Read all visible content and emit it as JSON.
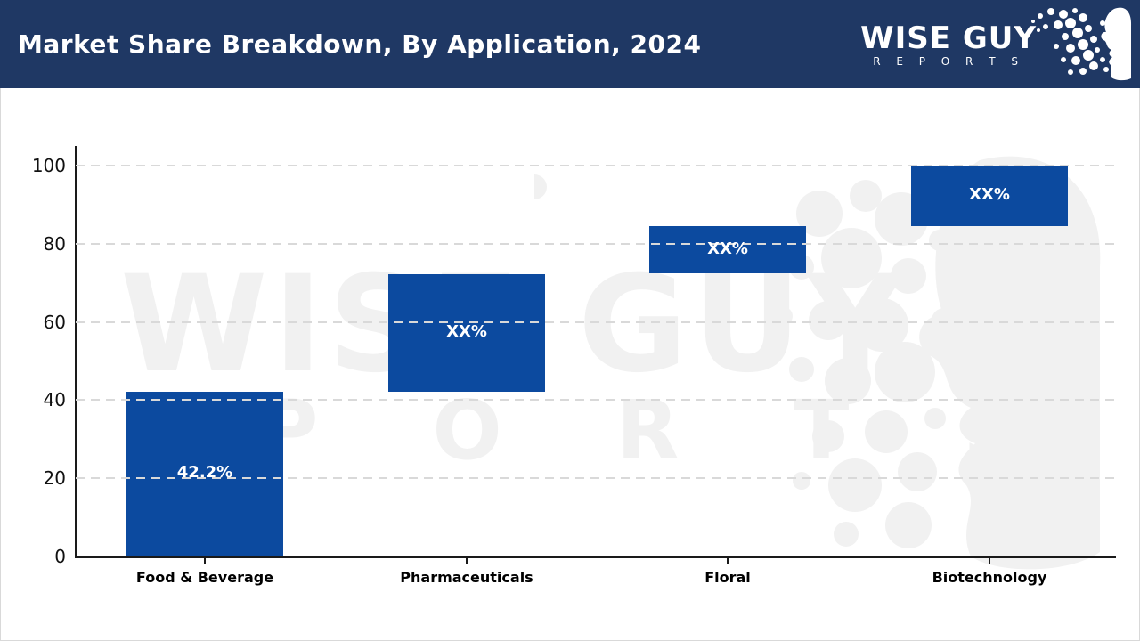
{
  "header": {
    "title": "Market Share Breakdown, By Application, 2024",
    "bg_color": "#1f3864",
    "logo": {
      "line1": "WISE GUY",
      "line2": "R E P O R T S",
      "face_icon": "face-profile-dots"
    }
  },
  "watermark": {
    "line1": "WISE GUY",
    "line2": "P O R T S",
    "face_icon": "face-profile-dots",
    "color": "#f1f1f1"
  },
  "chart_data": {
    "type": "bar",
    "variant": "waterfall",
    "title": "Market Share Breakdown, By Application, 2024",
    "categories": [
      "Food & Beverage",
      "Pharmaceuticals",
      "Floral",
      "Biotechnology"
    ],
    "segments": [
      {
        "category": "Food & Beverage",
        "start": 0,
        "end": 42.2,
        "label": "42.2%"
      },
      {
        "category": "Pharmaceuticals",
        "start": 42.2,
        "end": 72.3,
        "label": "XX%"
      },
      {
        "category": "Floral",
        "start": 72.4,
        "end": 84.4,
        "label": "XX%"
      },
      {
        "category": "Biotechnology",
        "start": 84.6,
        "end": 100,
        "label": "XX%"
      }
    ],
    "xlabel": "",
    "ylabel": "",
    "ylim": [
      0,
      100
    ],
    "yticks": [
      0,
      20,
      40,
      60,
      80,
      100
    ],
    "grid": "horizontal-dashed",
    "grid_above_bars": true,
    "legend": "none",
    "bar_color": "#0c4a9f",
    "grid_color": "#d9d9d9",
    "axis_color": "#1a1a1a"
  }
}
